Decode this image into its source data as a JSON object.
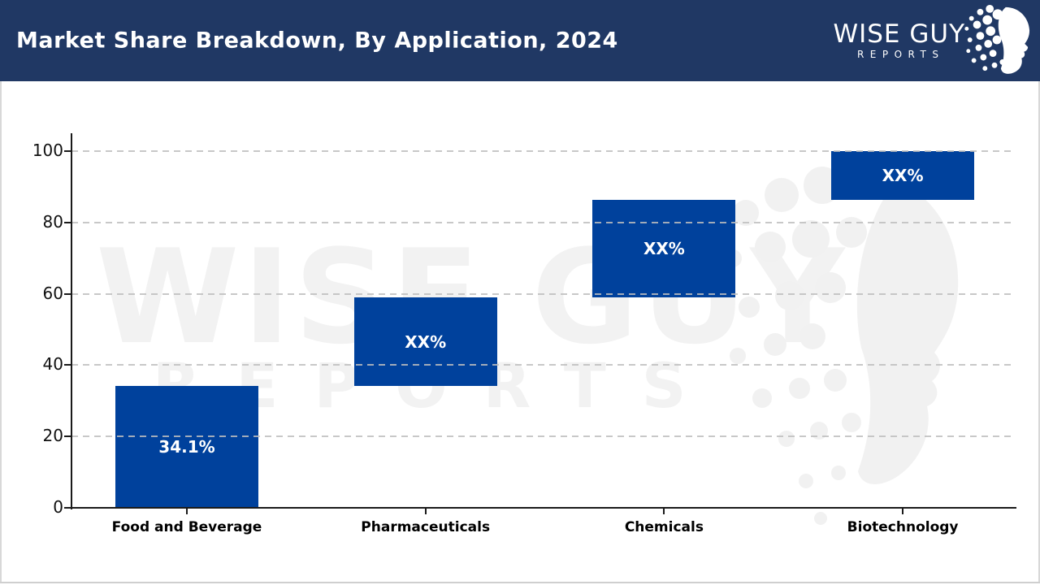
{
  "header": {
    "title": "Market Share Breakdown, By Application, 2024",
    "logo": {
      "line1": "WISE GUY",
      "line2": "REPORTS"
    },
    "bg_color": "#203864"
  },
  "watermark": {
    "line1": "WISE GUY",
    "line2": "REPORTS"
  },
  "chart_data": {
    "type": "bar",
    "subtype": "waterfall",
    "title": "Market Share Breakdown, By Application, 2024",
    "categories": [
      "Food and Beverage",
      "Pharmaceuticals",
      "Chemicals",
      "Biotechnology"
    ],
    "series": [
      {
        "name": "Market Share",
        "segments": [
          {
            "category": "Food and Beverage",
            "start": 0,
            "end": 34.1,
            "label": "34.1%"
          },
          {
            "category": "Pharmaceuticals",
            "start": 34.1,
            "end": 59.0,
            "label": "XX%"
          },
          {
            "category": "Chemicals",
            "start": 59.0,
            "end": 86.3,
            "label": "XX%"
          },
          {
            "category": "Biotechnology",
            "start": 86.3,
            "end": 100,
            "label": "XX%"
          }
        ]
      }
    ],
    "xlabel": "",
    "ylabel": "",
    "ylim": [
      0,
      105
    ],
    "yticks": [
      0,
      20,
      40,
      60,
      80,
      100
    ],
    "grid": true,
    "grid_style": "dashed-horizontal-over-bars",
    "legend": "none",
    "bar_color": "#00419c",
    "bar_label_color": "#ffffff",
    "axis_color": "#1a1a1a",
    "gridline_color": "#c8c8c8"
  }
}
